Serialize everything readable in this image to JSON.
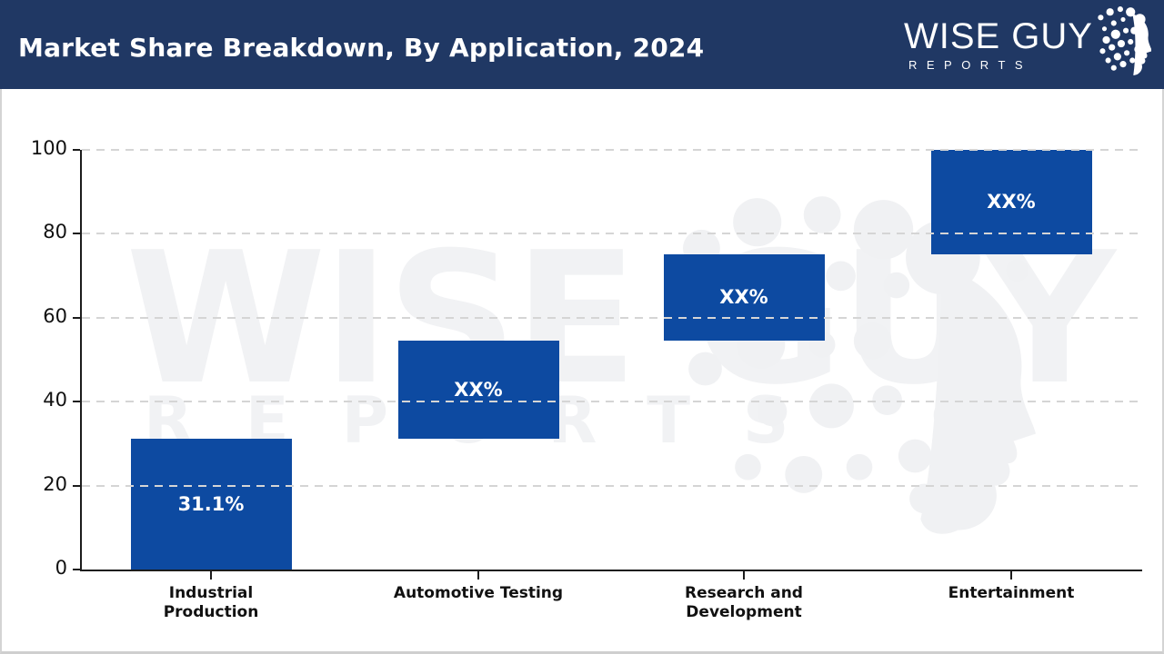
{
  "header": {
    "title": "Market Share Breakdown, By Application, 2024",
    "background_color": "#203864"
  },
  "logo": {
    "primary": "WISE GUY",
    "secondary": "REPORTS"
  },
  "watermark": {
    "primary": "WISE GUY",
    "secondary": "REPORTS"
  },
  "chart_data": {
    "type": "bar",
    "subtype": "waterfall",
    "title": "Market Share Breakdown, By Application, 2024",
    "categories": [
      "Industrial\nProduction",
      "Automotive Testing",
      "Research and\nDevelopment",
      "Entertainment"
    ],
    "series": [
      {
        "category": "Industrial Production",
        "label": "31.1%",
        "start": 0,
        "end": 31.1
      },
      {
        "category": "Automotive Testing",
        "label": "XX%",
        "start": 31.1,
        "end": 54.5
      },
      {
        "category": "Research and Development",
        "label": "XX%",
        "start": 54.5,
        "end": 75.2
      },
      {
        "category": "Entertainment",
        "label": "XX%",
        "start": 75.2,
        "end": 100
      }
    ],
    "ylim": [
      0,
      100
    ],
    "yticks": [
      0,
      20,
      40,
      60,
      80,
      100
    ],
    "grid": "horizontal dashed, drawn above bars",
    "legend": "none",
    "bar_color": "#0d4aa1",
    "bar_label_color": "#ffffff"
  }
}
